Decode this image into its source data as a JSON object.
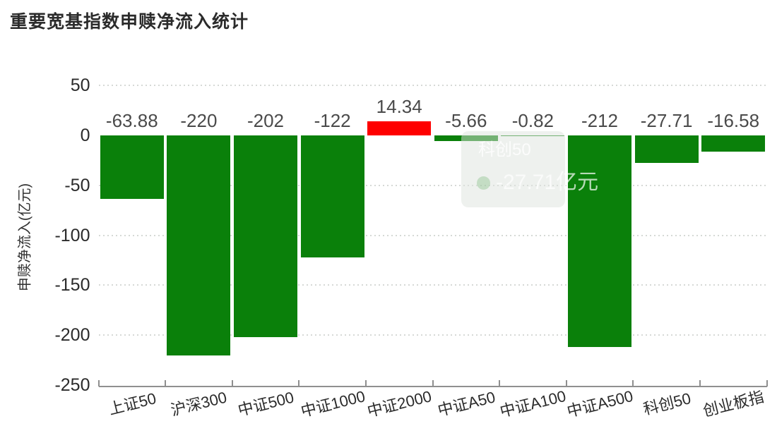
{
  "title": "重要宽基指数申赎净流入统计",
  "chart_data": {
    "type": "bar",
    "title": "重要宽基指数申赎净流入统计",
    "categories": [
      "上证50",
      "沪深300",
      "中证500",
      "中证1000",
      "中证2000",
      "中证A50",
      "中证A100",
      "中证A500",
      "科创50",
      "创业板指"
    ],
    "values": [
      -63.88,
      -220,
      -202,
      -122,
      14.34,
      -5.66,
      -0.82,
      -212,
      -27.71,
      -16.58
    ],
    "value_labels": [
      "-63.88",
      "-220",
      "-202",
      "-122",
      "14.34",
      "-5.66",
      "-0.82",
      "-212",
      "-27.71",
      "-16.58"
    ],
    "xlabel": "",
    "ylabel": "申赎净流入(亿元)",
    "yticks": [
      50,
      0,
      -50,
      -100,
      -150,
      -200,
      -250
    ],
    "ylim": [
      -250,
      50
    ],
    "grid": "dotted horizontal gridlines, hidden at 0 and -250",
    "legend_position": "none",
    "colors": {
      "negative_bar": "#0a800a",
      "positive_bar": "#fe0000",
      "label_text": "#4a4a4a",
      "axis_text": "#2b2b2b",
      "axis_line": "#8f8f8f",
      "gridline": "#d6d9d6"
    }
  },
  "tooltip": {
    "series_name": "科创50",
    "value_text": "-27.71亿元",
    "marker_icon": "circle-marker-icon"
  }
}
